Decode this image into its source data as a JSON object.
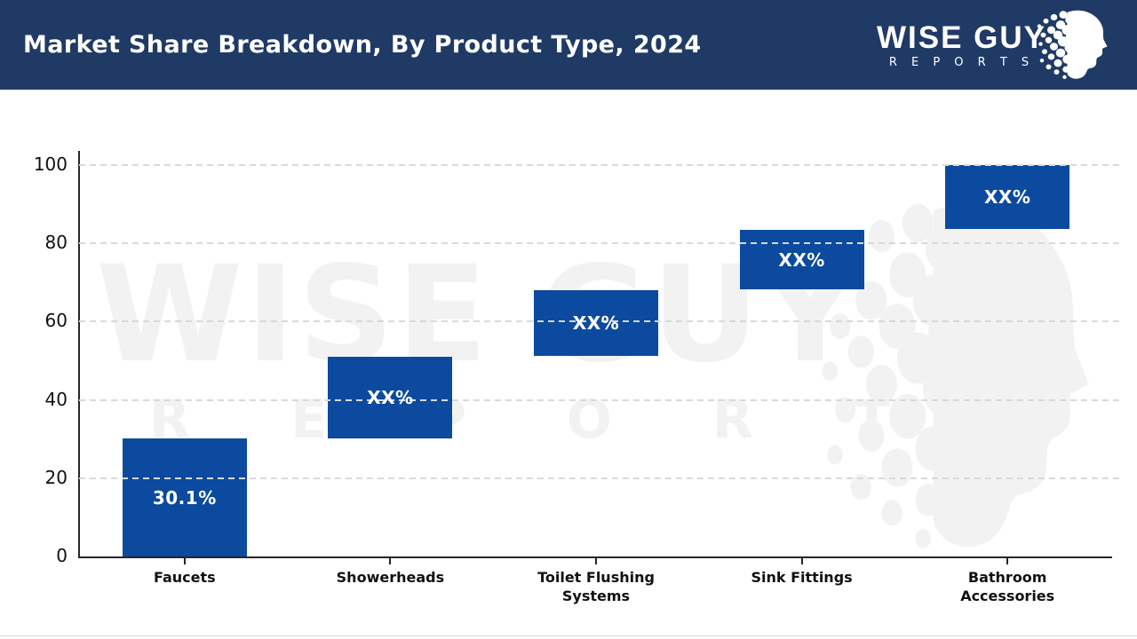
{
  "header": {
    "title": "Market Share Breakdown, By Product Type, 2024",
    "logo": {
      "wordmark": "WISE GUY",
      "reports": "R E P O R T S"
    }
  },
  "watermark": {
    "wordmark": "WISE GUY",
    "reports": "R E P O R T S"
  },
  "chart_data": {
    "type": "bar",
    "subtype": "waterfall",
    "title": "Market Share Breakdown, By Product Type, 2024",
    "categories": [
      "Faucets",
      "Showerheads",
      "Toilet Flushing Systems",
      "Sink Fittings",
      "Bathroom Accessories"
    ],
    "category_label_lines": [
      [
        "Faucets"
      ],
      [
        "Showerheads"
      ],
      [
        "Toilet Flushing",
        "Systems"
      ],
      [
        "Sink Fittings"
      ],
      [
        "Bathroom",
        "Accessories"
      ]
    ],
    "segments": [
      {
        "category": "Faucets",
        "start": 0,
        "end": 30.1,
        "label": "30.1%"
      },
      {
        "category": "Showerheads",
        "start": 30.1,
        "end": 51.0,
        "label": "XX%"
      },
      {
        "category": "Toilet Flushing Systems",
        "start": 51.3,
        "end": 68.0,
        "label": "XX%"
      },
      {
        "category": "Sink Fittings",
        "start": 68.2,
        "end": 83.4,
        "label": "XX%"
      },
      {
        "category": "Bathroom Accessories",
        "start": 83.6,
        "end": 100,
        "label": "XX%"
      }
    ],
    "yticks": [
      0,
      20,
      40,
      60,
      80,
      100
    ],
    "ylim": [
      0,
      104
    ],
    "xlabel": "",
    "ylabel": "",
    "grid": "dashed-horizontal",
    "legend": "none",
    "bar_color": "#0b4a9f",
    "bar_label_color": "#ffffff",
    "grid_color": "#d9d9d9",
    "axis_color": "#262626",
    "header_bg": "#203a66",
    "watermark_color": "#f2f2f3"
  }
}
